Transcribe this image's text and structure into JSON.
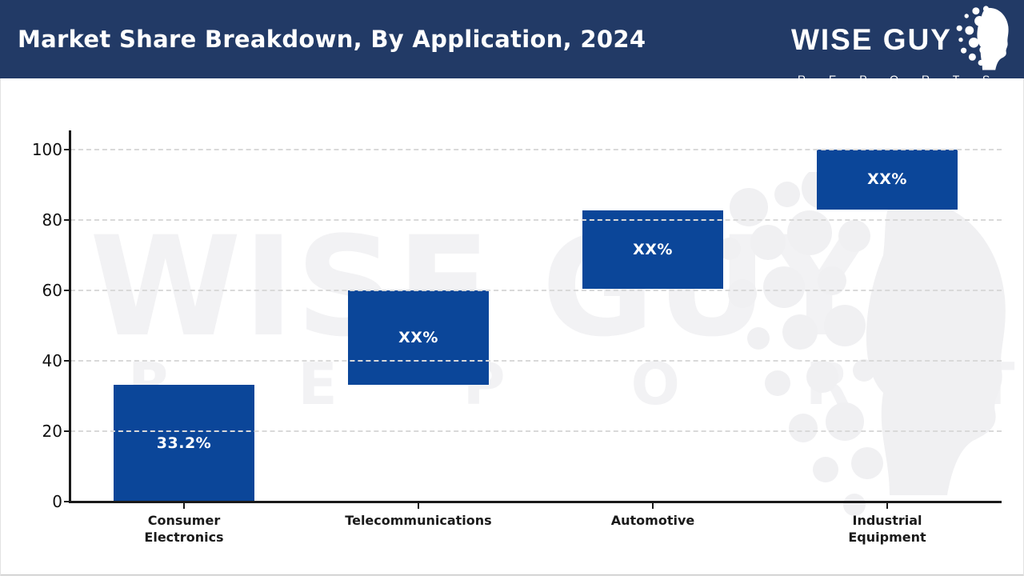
{
  "header": {
    "title": "Market Share Breakdown, By Application, 2024",
    "bg_color": "#223a66",
    "logo": {
      "line1": "WISE GUY",
      "line2": "R E P O R T S"
    }
  },
  "watermark": {
    "line1": "WISE GUY",
    "line2": "R E P O R T S"
  },
  "chart_data": {
    "type": "bar",
    "subtype": "waterfall",
    "title": "Market Share Breakdown, By Application, 2024",
    "categories": [
      "Consumer Electronics",
      "Telecommunications",
      "Automotive",
      "Industrial Equipment"
    ],
    "label_lines": [
      [
        "Consumer",
        "Electronics"
      ],
      [
        "Telecommunications"
      ],
      [
        "Automotive"
      ],
      [
        "Industrial",
        "Equipment"
      ]
    ],
    "segments": [
      {
        "category": "Consumer Electronics",
        "start": 0,
        "end": 33.2,
        "label": "33.2%"
      },
      {
        "category": "Telecommunications",
        "start": 33.2,
        "end": 60,
        "label": "XX%"
      },
      {
        "category": "Automotive",
        "start": 60.5,
        "end": 82.7,
        "label": "XX%"
      },
      {
        "category": "Industrial Equipment",
        "start": 83,
        "end": 100,
        "label": "XX%"
      }
    ],
    "yticks": [
      0,
      20,
      40,
      60,
      80,
      100
    ],
    "ylim": [
      0,
      100
    ],
    "grid": "horizontal dashed",
    "legend": "none",
    "bar_color": "#0b4699",
    "bar_label_color": "#ffffff",
    "axis_color": "#1a1a1a",
    "grid_color": "#d9d9d9"
  }
}
